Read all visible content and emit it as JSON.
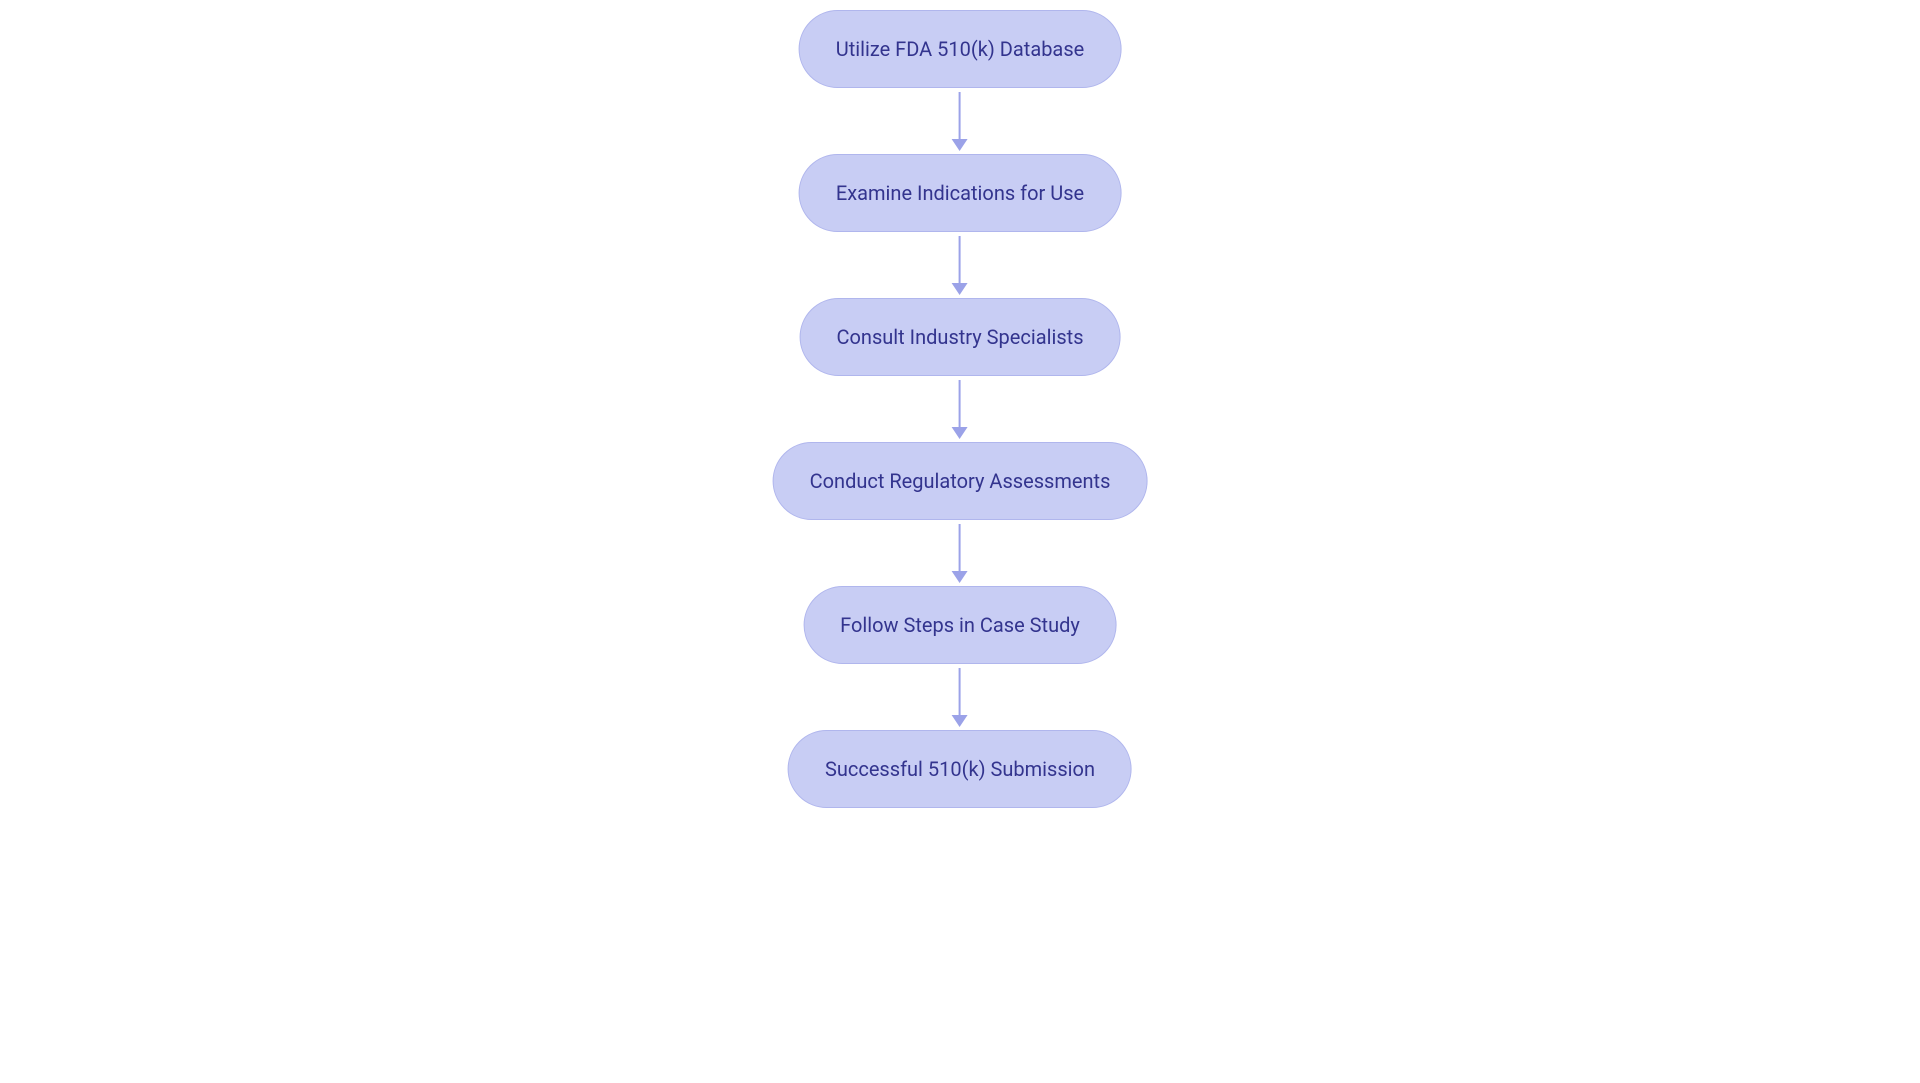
{
  "flowchart": {
    "type": "flowchart",
    "direction": "vertical",
    "background_color": "#ffffff",
    "node_style": {
      "fill_color": "#c8cdf4",
      "border_color": "#b0b6ed",
      "text_color": "#33348e",
      "border_radius": 50,
      "font_size": 20,
      "height": 78,
      "padding_horizontal": 36
    },
    "arrow_style": {
      "color": "#9ba2e8",
      "line_width": 2,
      "line_length": 48,
      "head_width": 16,
      "head_height": 12,
      "gap_height": 66
    },
    "nodes": [
      {
        "id": "node1",
        "label": "Utilize FDA 510(k) Database"
      },
      {
        "id": "node2",
        "label": "Examine Indications for Use"
      },
      {
        "id": "node3",
        "label": "Consult Industry Specialists"
      },
      {
        "id": "node4",
        "label": "Conduct Regulatory Assessments"
      },
      {
        "id": "node5",
        "label": "Follow Steps in Case Study"
      },
      {
        "id": "node6",
        "label": "Successful 510(k) Submission"
      }
    ],
    "edges": [
      {
        "from": "node1",
        "to": "node2"
      },
      {
        "from": "node2",
        "to": "node3"
      },
      {
        "from": "node3",
        "to": "node4"
      },
      {
        "from": "node4",
        "to": "node5"
      },
      {
        "from": "node5",
        "to": "node6"
      }
    ]
  }
}
